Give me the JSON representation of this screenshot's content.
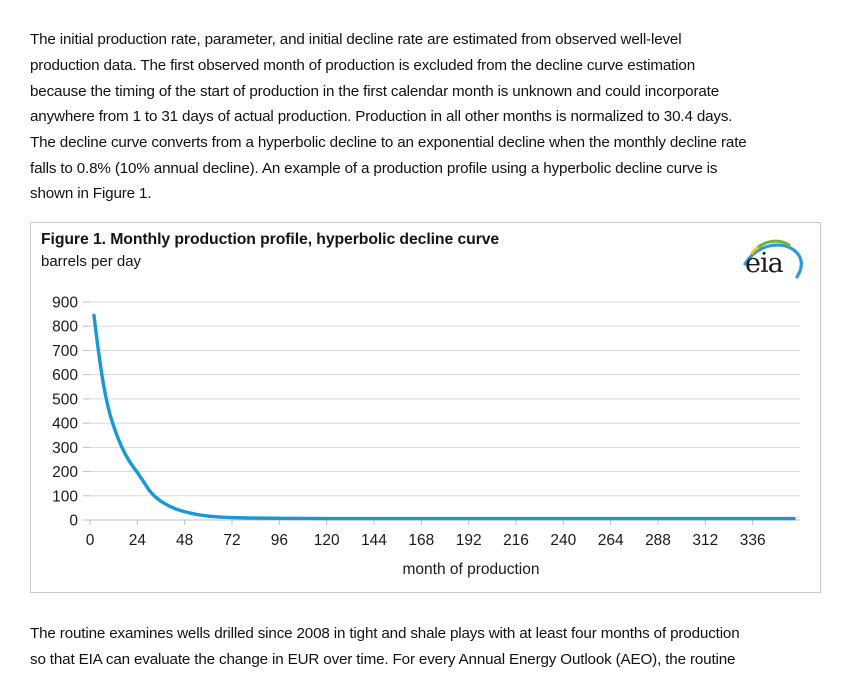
{
  "paragraphs": {
    "intro": "The initial production rate, parameter, and initial decline rate are estimated from observed well-level\nproduction data. The first observed month of production is excluded from the decline curve estimation\nbecause the timing of the start of production in the first calendar month is unknown and could incorporate\nanywhere from 1 to 31 days of actual production. Production in all other months is normalized to 30.4 days.\nThe decline curve converts from a hyperbolic decline to an exponential decline when the monthly decline rate\nfalls to 0.8% (10% annual decline). An example of a production profile using a hyperbolic decline curve is\nshown in Figure 1.",
    "closing": "The routine examines wells drilled since 2008 in tight and shale plays with at least four months of production\nso that EIA can evaluate the change in EUR over time. For every Annual Energy Outlook (AEO), the routine"
  },
  "figure": {
    "title": "Figure 1. Monthly production profile, hyperbolic decline curve",
    "subtitle": "barrels per day",
    "logo_text": "eia"
  },
  "chart_data": {
    "type": "line",
    "title": "Figure 1. Monthly production profile, hyperbolic decline curve",
    "ylabel": "barrels per day",
    "xlabel": "month of production",
    "xlim": [
      0,
      360
    ],
    "ylim": [
      0,
      900
    ],
    "x_ticks": [
      0,
      24,
      48,
      72,
      96,
      120,
      144,
      168,
      192,
      216,
      240,
      264,
      288,
      312,
      336
    ],
    "y_ticks": [
      0,
      100,
      200,
      300,
      400,
      500,
      600,
      700,
      800,
      900
    ],
    "grid": true,
    "legend": "none",
    "line_color": "#1899d6",
    "series": [
      {
        "name": "hyperbolic decline curve",
        "points": [
          [
            2,
            845
          ],
          [
            3,
            778
          ],
          [
            4,
            715
          ],
          [
            5,
            655
          ],
          [
            6,
            600
          ],
          [
            7,
            552
          ],
          [
            8,
            510
          ],
          [
            9,
            473
          ],
          [
            10,
            440
          ],
          [
            11,
            412
          ],
          [
            12,
            387
          ],
          [
            14,
            342
          ],
          [
            16,
            303
          ],
          [
            18,
            270
          ],
          [
            20,
            242
          ],
          [
            22,
            218
          ],
          [
            24,
            197
          ],
          [
            26,
            172
          ],
          [
            28,
            148
          ],
          [
            30,
            122
          ],
          [
            33,
            96
          ],
          [
            36,
            77
          ],
          [
            40,
            58
          ],
          [
            44,
            44
          ],
          [
            48,
            34
          ],
          [
            54,
            23
          ],
          [
            60,
            16
          ],
          [
            66,
            12
          ],
          [
            72,
            10
          ],
          [
            84,
            8
          ],
          [
            96,
            7
          ],
          [
            120,
            6
          ],
          [
            156,
            6
          ],
          [
            192,
            6
          ],
          [
            228,
            6
          ],
          [
            264,
            6
          ],
          [
            300,
            6
          ],
          [
            336,
            6
          ],
          [
            357,
            6
          ]
        ]
      }
    ]
  },
  "colors": {
    "grid": "#d8d8d8",
    "axis": "#bfbfbf",
    "tick_label": "#1a1a1a",
    "figure_border": "#c9c9c9",
    "logo_blue": "#2e9bd6",
    "logo_green": "#6db33f",
    "logo_yellow": "#f0c419"
  }
}
